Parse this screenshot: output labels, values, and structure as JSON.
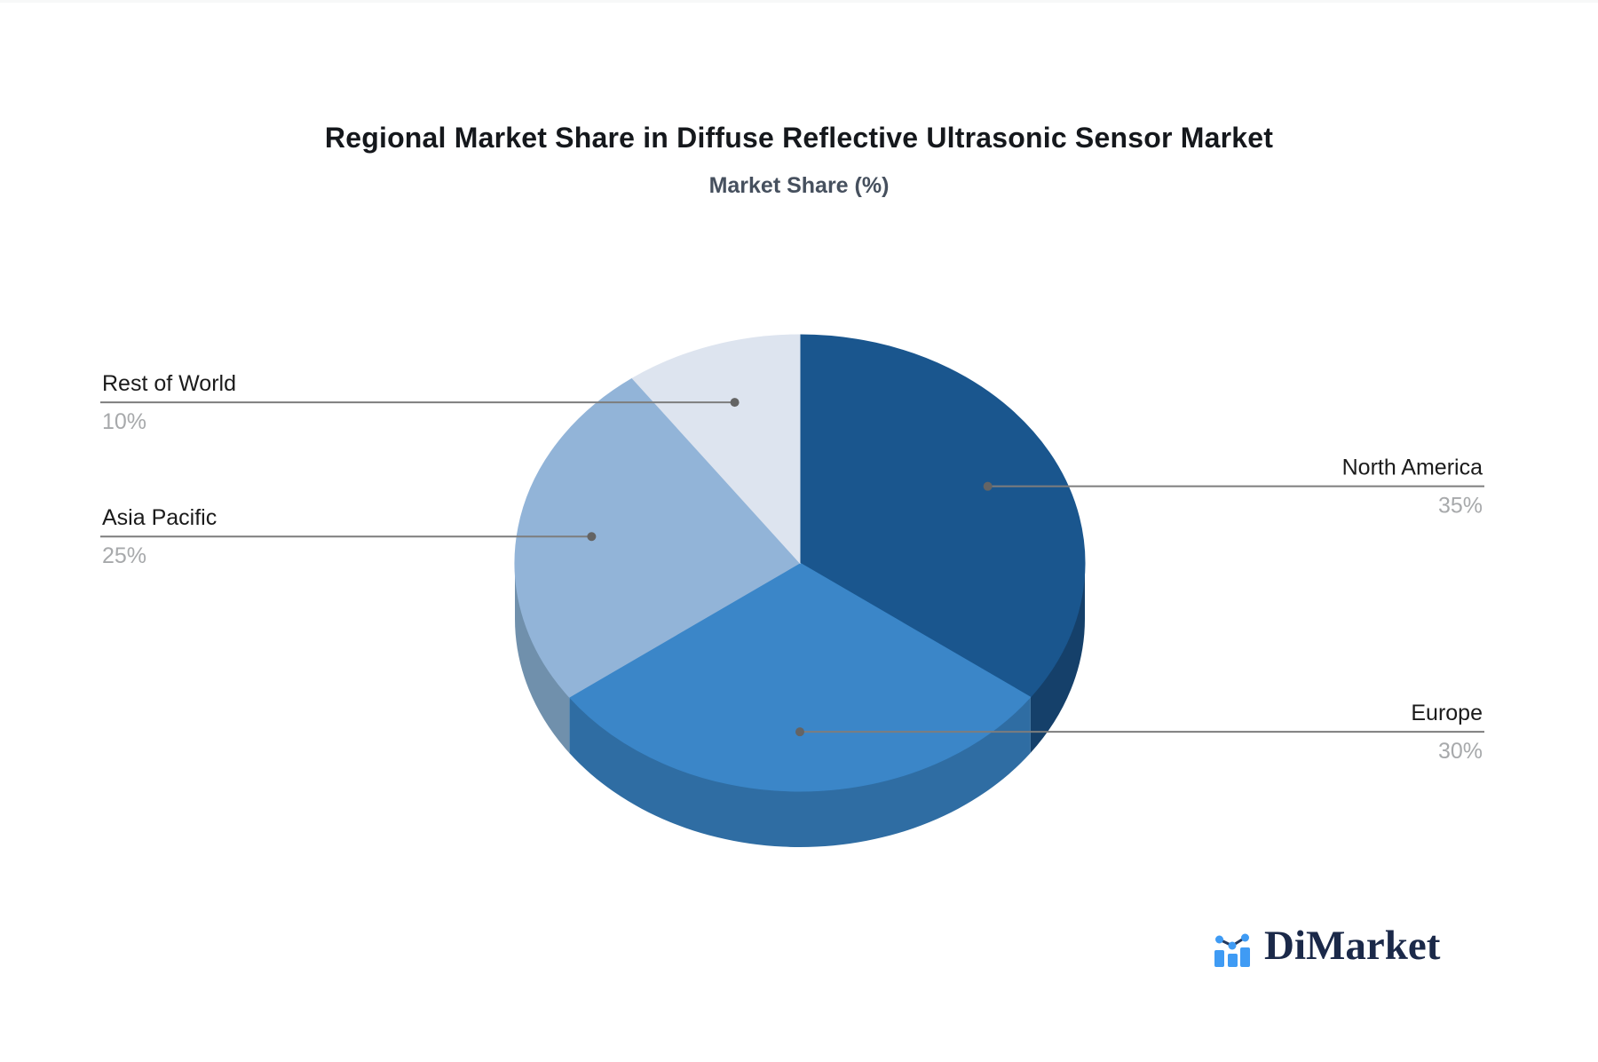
{
  "chart_data": {
    "type": "pie",
    "title": "Regional Market Share in Diffuse Reflective Ultrasonic Sensor Market",
    "subtitle": "Market Share (%)",
    "unit": "%",
    "effect_3d": true,
    "direction": "clockwise",
    "start_angle_deg": 0,
    "legend": "none",
    "leader_line_color": "#7d7d7d",
    "leader_dot_color": "#646464",
    "label_color": "#1b1b1b",
    "value_color": "#a7a9ab",
    "slices": [
      {
        "label": "North America",
        "value": 35,
        "display_value": "35%",
        "color": "#1A568E",
        "side_color": "#15406A",
        "label_side": "right"
      },
      {
        "label": "Europe",
        "value": 30,
        "display_value": "30%",
        "color": "#3B86C8",
        "side_color": "#2F6DA3",
        "label_side": "right"
      },
      {
        "label": "Asia Pacific",
        "value": 25,
        "display_value": "25%",
        "color": "#92B4D8",
        "side_color": "#7090AC",
        "label_side": "left"
      },
      {
        "label": "Rest of World",
        "value": 10,
        "display_value": "10%",
        "color": "#DDE4EF",
        "side_color": "#B9C4D4",
        "label_side": "left"
      }
    ]
  },
  "logo": {
    "text": "DiMarket",
    "icon": "bar-line-chart-icon",
    "text_color": "#1b2949",
    "icon_color": "#3F9BF4",
    "icon_line_color": "#24395E"
  }
}
